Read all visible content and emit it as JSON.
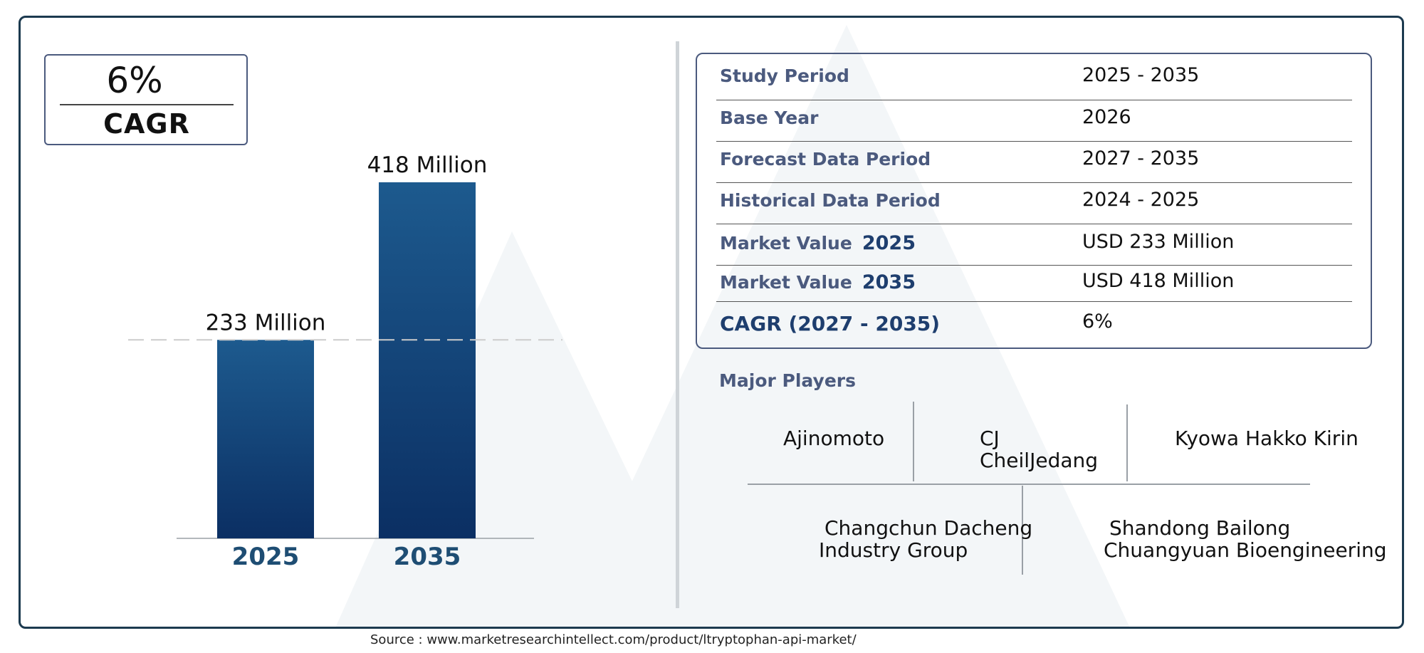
{
  "chart_data": {
    "type": "bar",
    "categories": [
      "2025",
      "2035"
    ],
    "values": [
      233,
      418
    ],
    "data_labels": [
      "233 Million",
      "418 Million"
    ],
    "ylim": [
      0,
      450
    ],
    "grid": false,
    "bar_color": "#1d5a8e",
    "bar_color_bottom": "#0b2f63",
    "tick_color": "#1e4d73"
  },
  "cagr_box": {
    "value": "6%",
    "label": "CAGR"
  },
  "info_table": [
    {
      "label": "Study Period",
      "value": "2025 - 2035"
    },
    {
      "label": "Base Year",
      "value": "2026"
    },
    {
      "label": "Forecast Data Period",
      "value": "2027 - 2035"
    },
    {
      "label": "Historical Data Period",
      "value": "2024 - 2025"
    },
    {
      "label": "Market Value",
      "year": "2025",
      "value": "USD 233 Million"
    },
    {
      "label": "Market Value",
      "year": "2035",
      "value": "USD 418 Million"
    },
    {
      "label": "CAGR (2027 - 2035)",
      "value": "6%"
    }
  ],
  "major_players": {
    "title": "Major Players",
    "players": [
      {
        "line1": "Ajinomoto",
        "line2": ""
      },
      {
        "line1": "CJ",
        "line2": "CheilJedang"
      },
      {
        "line1": "Kyowa Hakko Kirin",
        "line2": ""
      },
      {
        "line1": "Changchun Dacheng",
        "line2": "Industry Group"
      },
      {
        "line1": "Shandong Bailong",
        "line2": "Chuangyuan Bioengineering"
      }
    ]
  },
  "source": "Source : www.marketresearchintellect.com/product/ltryptophan-api-market/",
  "colors": {
    "label_blue": "#4b5a7e",
    "dark_blue": "#1e3e6e",
    "frame": "#1c3a4f"
  }
}
